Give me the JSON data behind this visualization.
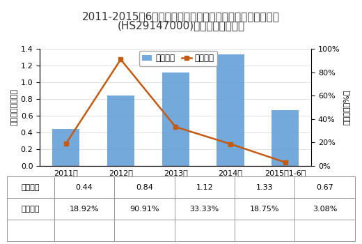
{
  "title_line1": "2011-2015年6月酮及醜的卤化、磺化、硝化或亚硝化衍生物",
  "title_line2": "(HS29147000)出口量及增速统计",
  "categories": [
    "2011年",
    "2012年",
    "2013年",
    "2014年",
    "2015年1-6月"
  ],
  "bar_values": [
    0.44,
    0.84,
    1.12,
    1.33,
    0.67
  ],
  "line_values": [
    18.92,
    90.91,
    33.33,
    18.75,
    3.08
  ],
  "bar_color": "#5B9BD5",
  "line_color": "#C55A11",
  "ylabel_left": "出口数量（万吨）",
  "ylabel_right": "同比增长（%）",
  "ylim_left": [
    0,
    1.4
  ],
  "ylim_right": [
    0,
    100
  ],
  "yticks_left": [
    0.0,
    0.2,
    0.4,
    0.6,
    0.8,
    1.0,
    1.2,
    1.4
  ],
  "yticks_right": [
    0,
    20,
    40,
    60,
    80,
    100
  ],
  "legend_bar": "出口数量",
  "legend_line": "同比增长",
  "table_row1_label": "出口数量",
  "table_row2_label": "同比增长",
  "table_row1_values": [
    "0.44",
    "0.84",
    "1.12",
    "1.33",
    "0.67"
  ],
  "table_row2_values": [
    "18.92%",
    "90.91%",
    "33.33%",
    "18.75%",
    "3.08%"
  ],
  "title_fontsize": 11,
  "axis_fontsize": 8,
  "tick_fontsize": 8,
  "table_fontsize": 8,
  "background_color": "#FFFFFF",
  "grid_color": "#DDDDDD",
  "watermark_color": "#D0D8E8"
}
